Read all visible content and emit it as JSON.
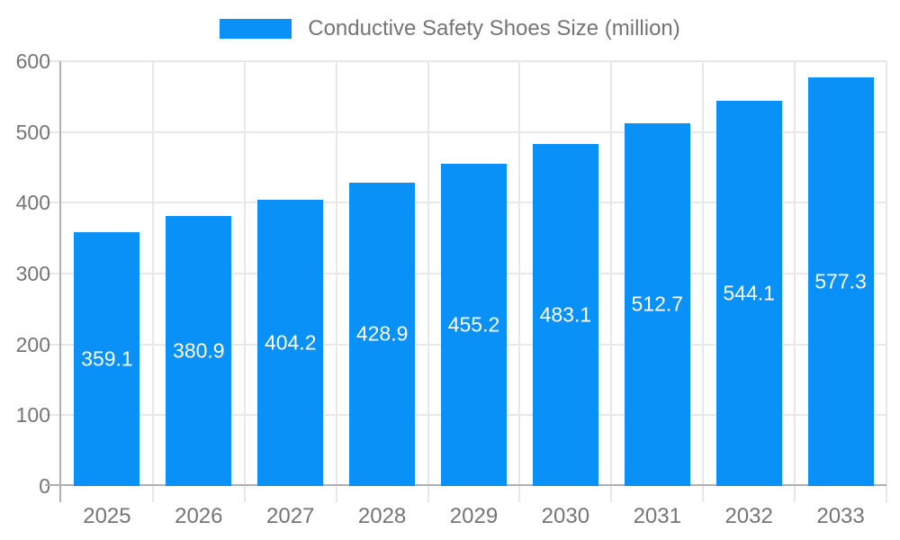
{
  "chart_data": {
    "type": "bar",
    "title": "Conductive Safety Shoes Size (million)",
    "categories": [
      "2025",
      "2026",
      "2027",
      "2028",
      "2029",
      "2030",
      "2031",
      "2032",
      "2033"
    ],
    "values": [
      359.1,
      380.9,
      404.2,
      428.9,
      455.2,
      483.1,
      512.7,
      544.1,
      577.3
    ],
    "value_labels": [
      "359.1",
      "380.9",
      "404.2",
      "428.9",
      "455.2",
      "483.1",
      "512.7",
      "544.1",
      "577.3"
    ],
    "xlabel": "",
    "ylabel": "",
    "ylim": [
      0,
      600
    ],
    "yticks": [
      0,
      100,
      200,
      300,
      400,
      500,
      600
    ],
    "ytick_labels": [
      "0",
      "100",
      "200",
      "300",
      "400",
      "500",
      "600"
    ],
    "grid": true,
    "legend_position": "top-center",
    "colors": {
      "bar": "#0991f8",
      "axis": "#b0b0b0",
      "grid": "#e8e8e8",
      "tick_text": "#757575",
      "value_label": "#ffffff",
      "background": "#ffffff"
    }
  }
}
